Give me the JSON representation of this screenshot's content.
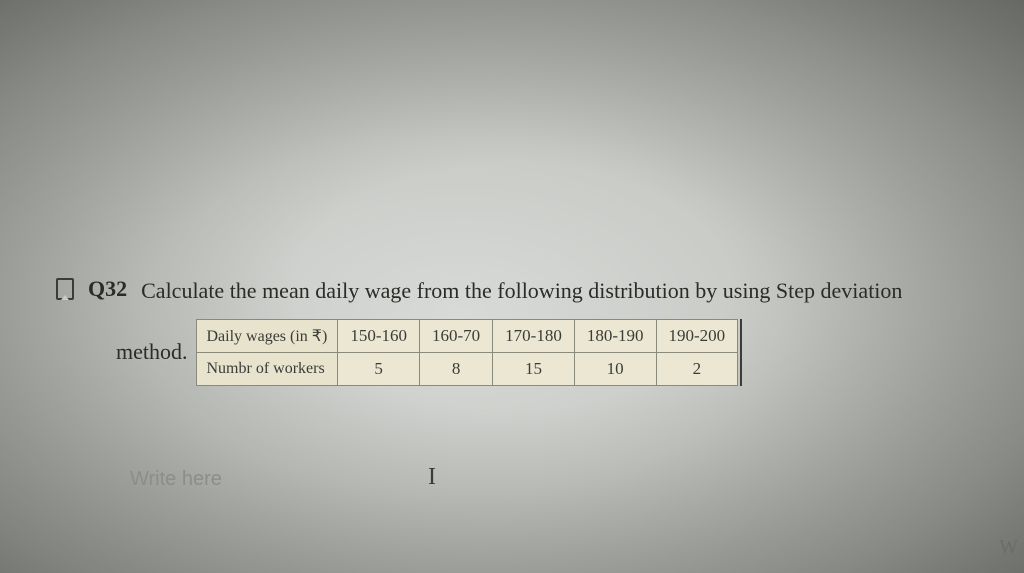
{
  "question": {
    "number": "Q32",
    "text": "Calculate the mean daily wage from the following distribution by using Step deviation",
    "method_label": "method."
  },
  "table": {
    "type": "table",
    "background_color": "#ece7d2",
    "border_color": "#8a8a7a",
    "header_bg": "#e8e3cc",
    "font_size": 17,
    "header_font_size": 16,
    "rows": [
      {
        "header": "Daily wages (in ₹)",
        "cells": [
          "150-160",
          "160-70",
          "170-180",
          "180-190",
          "190-200"
        ]
      },
      {
        "header": "Numbr of workers",
        "cells": [
          "5",
          "8",
          "15",
          "10",
          "2"
        ]
      }
    ]
  },
  "write_here": "Write here",
  "cursor_glyph": "I",
  "edge_letter": "W",
  "styling": {
    "page_bg_center": "#d8dad8",
    "page_bg_edge": "#888a86",
    "text_color": "#2a2c28",
    "placeholder_color": "#8c8e88",
    "question_fontsize": 22,
    "font_family": "Georgia"
  }
}
